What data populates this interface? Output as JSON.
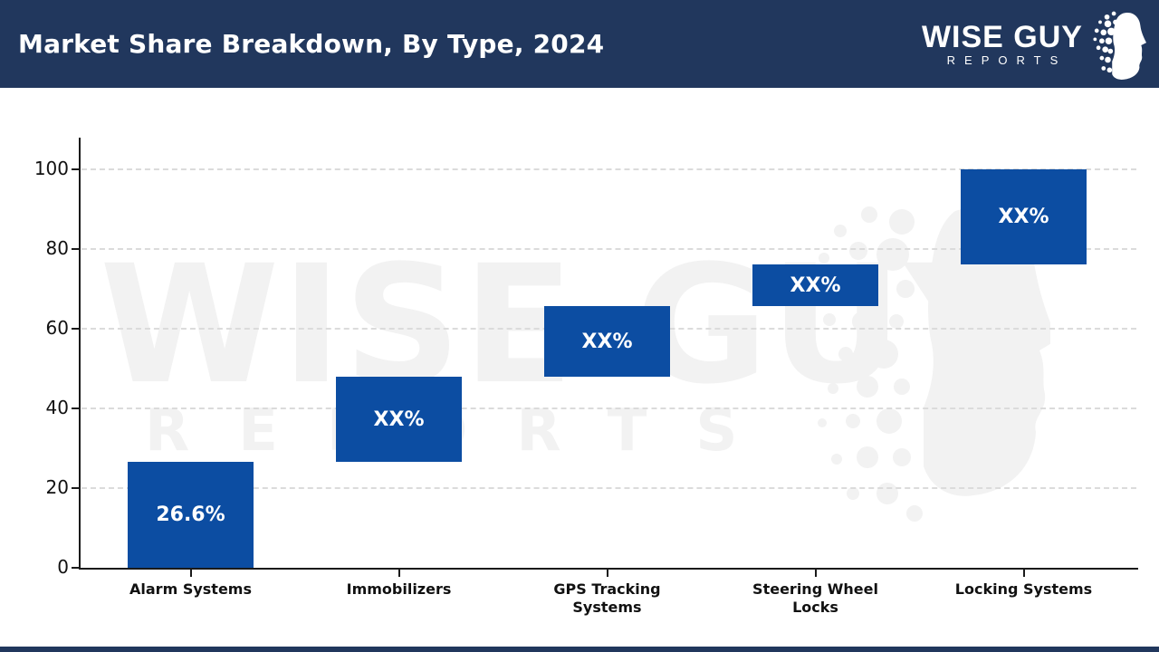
{
  "header": {
    "title": "Market Share Breakdown, By Type, 2024",
    "logo": {
      "line1": "WISE GUY",
      "line2": "REPORTS"
    }
  },
  "watermark": {
    "line1": "WISE GUY",
    "line2": "REPORTS"
  },
  "colors": {
    "header_bg": "#21375d",
    "bar_fill": "#0c4da2",
    "bar_label_text": "#ffffff",
    "gridline": "#dbdbdb",
    "axis": "#1a1a1a",
    "watermark": "#f2f2f2"
  },
  "chart_data": {
    "type": "bar",
    "subtype": "floating-waterfall",
    "title": "Market Share Breakdown, By Type, 2024",
    "xlabel": "",
    "ylabel": "",
    "ylim": [
      0,
      105
    ],
    "yticks": [
      0,
      20,
      40,
      60,
      80,
      100
    ],
    "grid": "horizontal-dashed",
    "legend": "none",
    "categories": [
      "Alarm Systems",
      "Immobilizers",
      "GPS Tracking Systems",
      "Steering Wheel Locks",
      "Locking Systems"
    ],
    "segments": [
      {
        "category": "Alarm Systems",
        "start": 0,
        "end": 26.6,
        "label": "26.6%"
      },
      {
        "category": "Immobilizers",
        "start": 26.6,
        "end": 47.9,
        "label": "XX%"
      },
      {
        "category": "GPS Tracking Systems",
        "start": 47.9,
        "end": 65.7,
        "label": "XX%"
      },
      {
        "category": "Steering Wheel Locks",
        "start": 65.7,
        "end": 76.1,
        "label": "XX%"
      },
      {
        "category": "Locking Systems",
        "start": 76.1,
        "end": 100,
        "label": "XX%"
      }
    ]
  }
}
